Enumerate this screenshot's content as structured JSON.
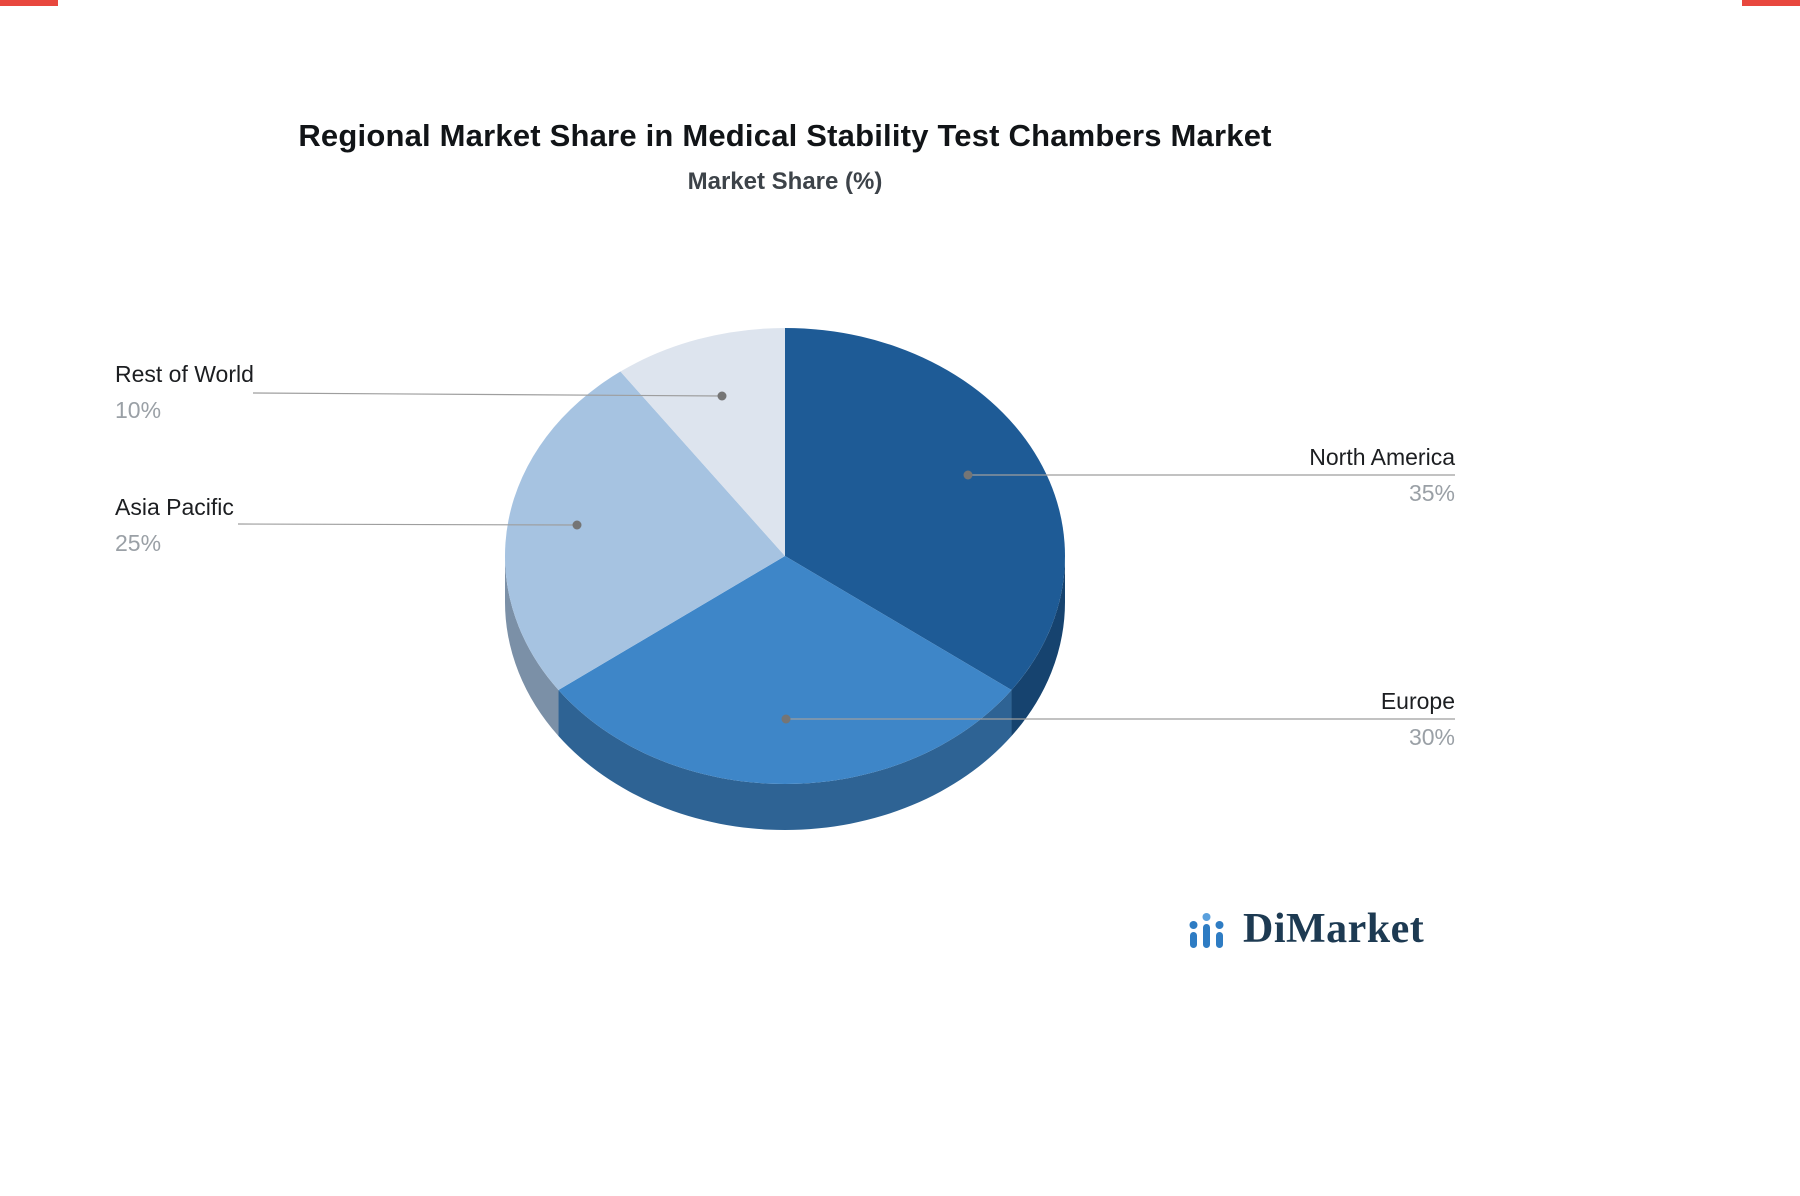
{
  "page": {
    "background": "#ffffff",
    "corner_accent_color": "#e8473e"
  },
  "header": {
    "title": "Regional Market Share in Medical Stability Test Chambers Market",
    "subtitle": "Market Share (%)"
  },
  "chart_data": {
    "type": "pie",
    "style": "3d",
    "title": "Regional Market Share in Medical Stability Test Chambers Market",
    "subtitle": "Market Share (%)",
    "unit": "%",
    "direction": "clockwise",
    "start_angle_deg": 0,
    "legend_position": "none",
    "slices": [
      {
        "label": "North America",
        "value": 35,
        "display": "35%",
        "color": "#1e5b96"
      },
      {
        "label": "Europe",
        "value": 30,
        "display": "30%",
        "color": "#3e86c8"
      },
      {
        "label": "Asia Pacific",
        "value": 25,
        "display": "25%",
        "color": "#a6c3e1"
      },
      {
        "label": "Rest of World",
        "value": 10,
        "display": "10%",
        "color": "#dde4ee"
      }
    ]
  },
  "callouts": {
    "north_america": {
      "label": "North America",
      "value": "35%"
    },
    "europe": {
      "label": "Europe",
      "value": "30%"
    },
    "asia_pacific": {
      "label": "Asia Pacific",
      "value": "25%"
    },
    "rest_of_world": {
      "label": "Rest of World",
      "value": "10%"
    }
  },
  "logo": {
    "text": "DiMarket",
    "text_color": "#1d3a52",
    "icon": "bar-chart-icon",
    "icon_color": "#2e7cc3"
  }
}
